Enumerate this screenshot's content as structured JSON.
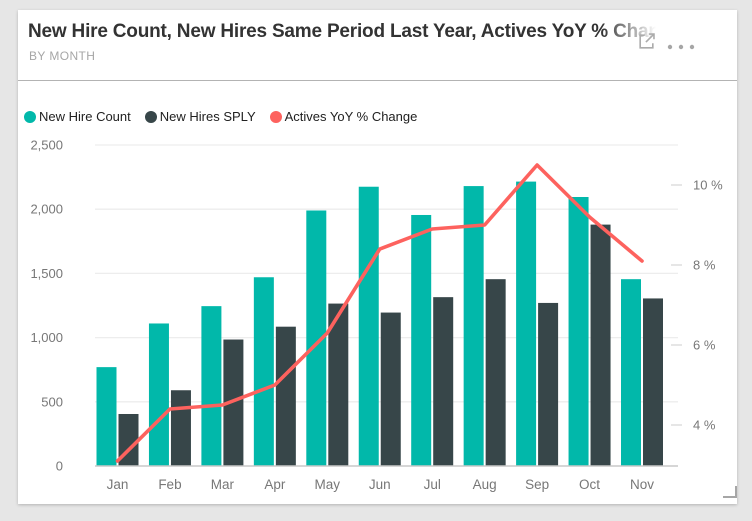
{
  "card": {
    "title": "New Hire Count, New Hires Same Period Last Year, Actives YoY % Change",
    "subtitle": "BY MONTH"
  },
  "legend": {
    "items": [
      {
        "label": "New Hire Count",
        "color": "#01B8AA"
      },
      {
        "label": "New Hires SPLY",
        "color": "#374649"
      },
      {
        "label": "Actives YoY % Change",
        "color": "#FD625E"
      }
    ]
  },
  "chart_data": {
    "type": "combo",
    "title": "New Hire Count, New Hires Same Period Last Year, Actives YoY % Change by Month",
    "categories": [
      "Jan",
      "Feb",
      "Mar",
      "Apr",
      "May",
      "Jun",
      "Jul",
      "Aug",
      "Sep",
      "Oct",
      "Nov"
    ],
    "series": [
      {
        "name": "New Hire Count",
        "type": "bar",
        "axis": "left",
        "color": "#01B8AA",
        "values": [
          770,
          1110,
          1245,
          1470,
          1990,
          2175,
          1955,
          2180,
          2215,
          2095,
          1455
        ]
      },
      {
        "name": "New Hires SPLY",
        "type": "bar",
        "axis": "left",
        "color": "#374649",
        "values": [
          405,
          590,
          985,
          1085,
          1265,
          1195,
          1315,
          1455,
          1270,
          1880,
          1305
        ]
      },
      {
        "name": "Actives YoY % Change",
        "type": "line",
        "axis": "right",
        "color": "#FD625E",
        "values": [
          3.1,
          4.4,
          4.5,
          5.0,
          6.3,
          8.4,
          8.9,
          9.0,
          10.5,
          9.2,
          8.1
        ]
      }
    ],
    "left_axis": {
      "min": 0,
      "max": 2500,
      "ticks": [
        0,
        500,
        1000,
        1500,
        2000,
        2500
      ],
      "labels": [
        "0",
        "500",
        "1,000",
        "1,500",
        "2,000",
        "2,500"
      ]
    },
    "right_axis": {
      "unit": "%",
      "ticks": [
        4,
        6,
        8,
        10
      ],
      "labels": [
        "4 %",
        "6 %",
        "8 %",
        "10 %"
      ]
    },
    "grid": "horizontal",
    "legend_position": "top-left"
  }
}
